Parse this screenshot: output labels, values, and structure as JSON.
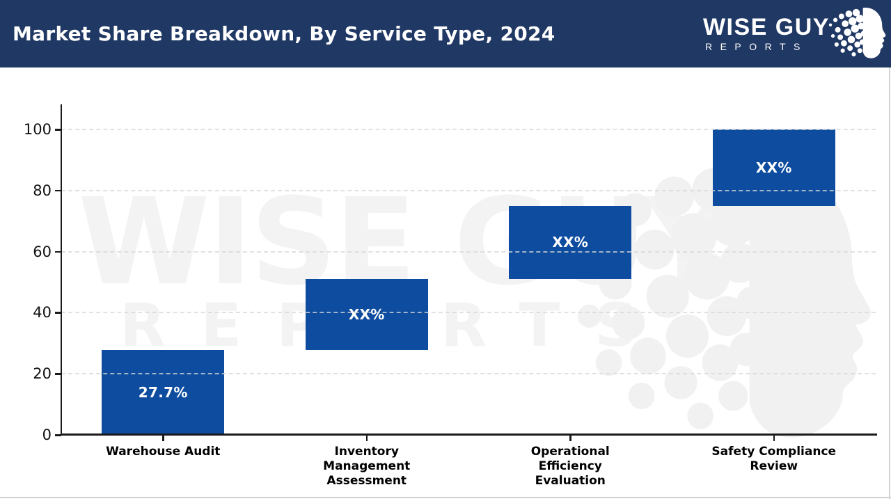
{
  "header": {
    "title": "Market Share Breakdown, By Service Type, 2024",
    "bg_color": "#203864",
    "logo": {
      "line1": "WISE GUY",
      "line2": "REPORTS"
    }
  },
  "watermark": {
    "line1": "WISE GUY",
    "line2": "REPORTS"
  },
  "chart_data": {
    "type": "bar",
    "subtype": "waterfall-floating-segments",
    "title": "Market Share Breakdown, By Service Type, 2024",
    "categories": [
      "Warehouse Audit",
      "Inventory Management Assessment",
      "Operational Efficiency Evaluation",
      "Safety Compliance Review"
    ],
    "category_lines": [
      [
        "Warehouse Audit"
      ],
      [
        "Inventory",
        "Management",
        "Assessment"
      ],
      [
        "Operational",
        "Efficiency",
        "Evaluation"
      ],
      [
        "Safety Compliance",
        "Review"
      ]
    ],
    "segments": [
      {
        "category": "Warehouse Audit",
        "start": 0,
        "end": 27.7,
        "label": "27.7%"
      },
      {
        "category": "Inventory Management Assessment",
        "start": 27.7,
        "end": 51,
        "label": "XX%"
      },
      {
        "category": "Operational Efficiency Evaluation",
        "start": 51,
        "end": 75,
        "label": "XX%"
      },
      {
        "category": "Safety Compliance Review",
        "start": 75,
        "end": 100,
        "label": "XX%"
      }
    ],
    "xlabel": "",
    "ylabel": "",
    "ylim": [
      0,
      100
    ],
    "yticks": [
      0,
      20,
      40,
      60,
      80,
      100
    ],
    "grid": "horizontal-dashed",
    "legend": "none",
    "bar_color": "#0d4c9f",
    "bar_label_color": "#ffffff"
  }
}
